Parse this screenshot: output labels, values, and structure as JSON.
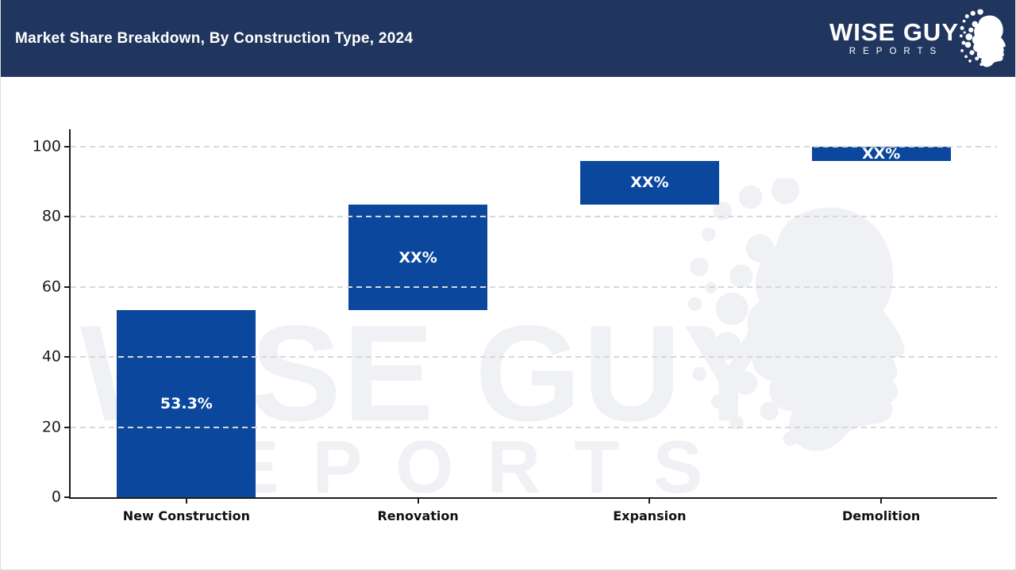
{
  "header": {
    "title": "Market Share Breakdown, By Construction Type, 2024",
    "logo": {
      "line1": "WISE GUY",
      "line2": "REPORTS"
    }
  },
  "watermark": {
    "line1": "WISE GUY",
    "line2": "REPORTS"
  },
  "colors": {
    "header_bg": "#21365f",
    "bar": "#0b479c",
    "bar_label": "#ffffff",
    "grid": "#d8d8d8",
    "axis": "#1c1c1c",
    "watermark": "#f0f1f4"
  },
  "chart_data": {
    "type": "bar",
    "subtype": "waterfall",
    "title": "Market Share Breakdown, By Construction Type, 2024",
    "categories": [
      "New Construction",
      "Renovation",
      "Expansion",
      "Demolition"
    ],
    "segments": [
      {
        "category": "New Construction",
        "start": 0,
        "end": 53.3,
        "label": "53.3%"
      },
      {
        "category": "Renovation",
        "start": 53.3,
        "end": 83.5,
        "label": "XX%"
      },
      {
        "category": "Expansion",
        "start": 83.5,
        "end": 96.0,
        "label": "XX%"
      },
      {
        "category": "Demolition",
        "start": 96.0,
        "end": 100.0,
        "label": "XX%"
      }
    ],
    "xlabel": "",
    "ylabel": "",
    "ylim": [
      0,
      105
    ],
    "yticks": [
      0,
      20,
      40,
      60,
      80,
      100
    ],
    "grid": "horizontal-dashed",
    "legend": "none"
  }
}
